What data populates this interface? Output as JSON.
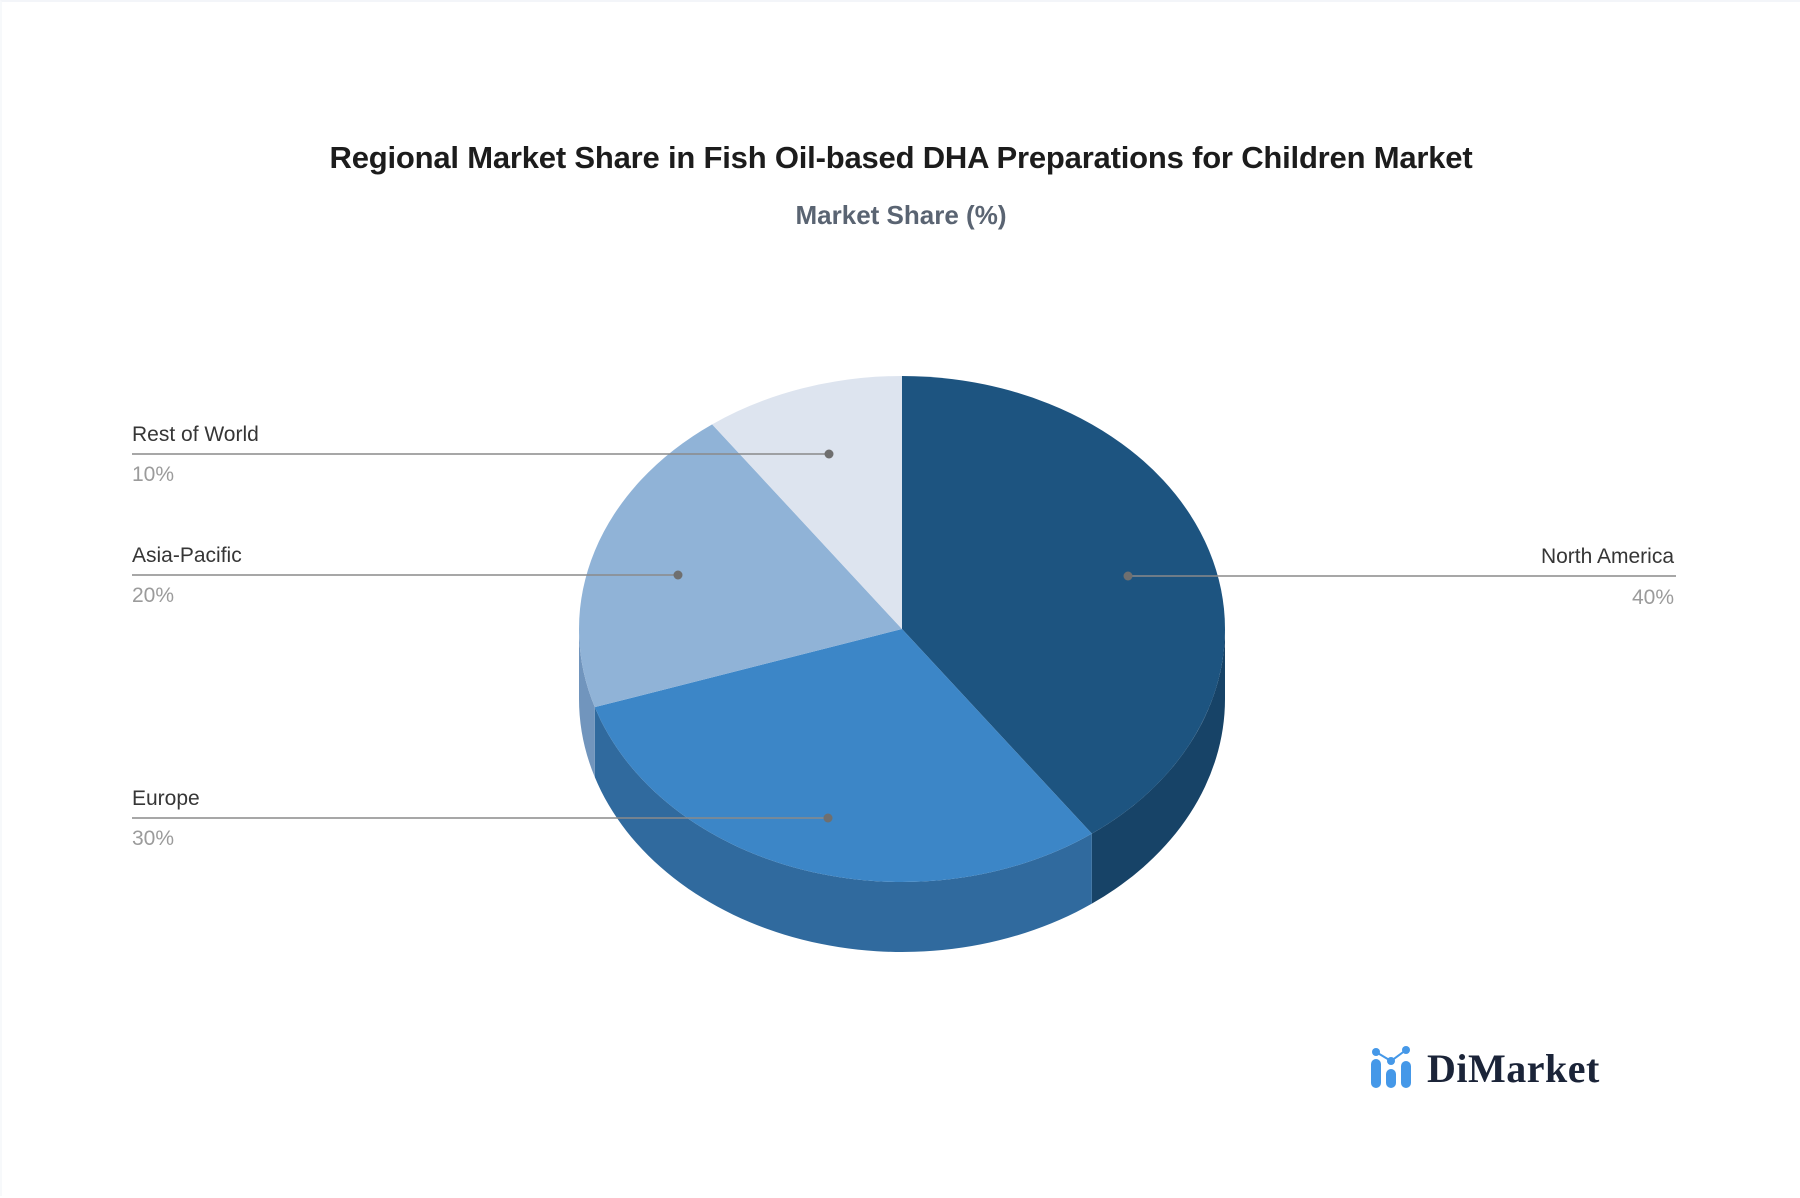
{
  "header": {
    "title": "Regional Market Share in Fish Oil-based DHA Preparations for Children Market",
    "subtitle": "Market Share (%)"
  },
  "chart_data": {
    "type": "pie",
    "style": "3d-pie",
    "title": "Regional Market Share in Fish Oil-based DHA Preparations for Children Market",
    "subtitle": "Market Share (%)",
    "unit": "%",
    "direction": "clockwise",
    "start_angle_deg": 0,
    "legend_position": "callout-labels",
    "slices": [
      {
        "label": "North America",
        "value": 40,
        "display": "40%",
        "color": "#1d5480",
        "side_color": "#174367",
        "label_side": "right"
      },
      {
        "label": "Europe",
        "value": 30,
        "display": "30%",
        "color": "#3c86c7",
        "side_color": "#306a9e",
        "label_side": "left"
      },
      {
        "label": "Asia-Pacific",
        "value": 20,
        "display": "20%",
        "color": "#90b3d7",
        "side_color": "#7195bd",
        "label_side": "left"
      },
      {
        "label": "Rest of World",
        "value": 10,
        "display": "10%",
        "color": "#dde4ef",
        "side_color": "#b9c6da",
        "label_side": "left"
      }
    ],
    "leader_line_color": "#8a8a8a",
    "leader_dot_color": "#6f6f6f"
  },
  "watermark": {
    "brand": "DiMarket",
    "icon": "bar-line-chart-icon",
    "text_color": "#1b2438",
    "icon_color": "#4598e8"
  }
}
